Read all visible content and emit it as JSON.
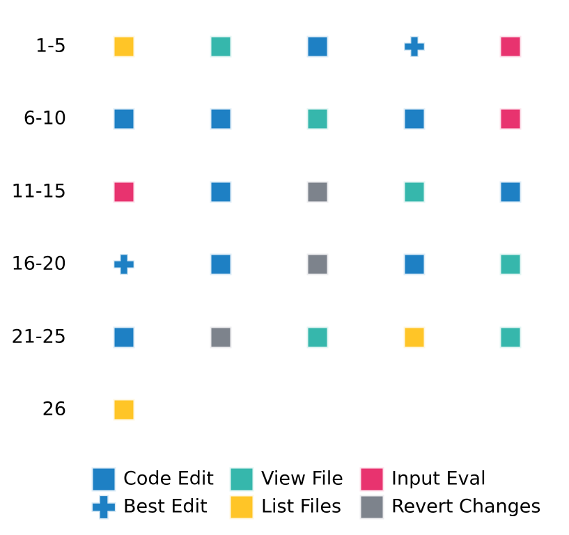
{
  "figure": {
    "background_color": "#ffffff",
    "text_color": "#000000",
    "title": ""
  },
  "chart_data": {
    "type": "scatter",
    "description": "Agent action sequence grid: each row shows 5 consecutive steps, marker color/shape encodes the action type",
    "grid": false,
    "legend_position": "bottom",
    "y_axis": {
      "label": "",
      "tick_labels": [
        "1-5",
        "6-10",
        "11-15",
        "16-20",
        "21-25",
        "26"
      ]
    },
    "x_axis": {
      "label": "",
      "tick_labels": []
    },
    "rows": [
      {
        "label": "1-5",
        "actions": [
          "List Files",
          "View File",
          "Code Edit",
          "Best Edit",
          "Input Eval"
        ]
      },
      {
        "label": "6-10",
        "actions": [
          "Code Edit",
          "Code Edit",
          "View File",
          "Code Edit",
          "Input Eval"
        ]
      },
      {
        "label": "11-15",
        "actions": [
          "Input Eval",
          "Code Edit",
          "Revert Changes",
          "View File",
          "Code Edit"
        ]
      },
      {
        "label": "16-20",
        "actions": [
          "Best Edit",
          "Code Edit",
          "Revert Changes",
          "Code Edit",
          "View File"
        ]
      },
      {
        "label": "21-25",
        "actions": [
          "Code Edit",
          "Revert Changes",
          "View File",
          "List Files",
          "View File"
        ]
      },
      {
        "label": "26",
        "actions": [
          "List Files"
        ]
      }
    ],
    "legend": [
      {
        "label": "Code Edit",
        "marker": "square",
        "icon": "square-icon",
        "color": "#1e80c4"
      },
      {
        "label": "View File",
        "marker": "square",
        "icon": "square-icon",
        "color": "#36b7ac"
      },
      {
        "label": "Input Eval",
        "marker": "square",
        "icon": "square-icon",
        "color": "#e8336f"
      },
      {
        "label": "Best Edit",
        "marker": "plus",
        "icon": "plus-icon",
        "color": "#1e80c4"
      },
      {
        "label": "List Files",
        "marker": "square",
        "icon": "square-icon",
        "color": "#ffc527"
      },
      {
        "label": "Revert Changes",
        "marker": "square",
        "icon": "square-icon",
        "color": "#7d838c"
      }
    ]
  }
}
